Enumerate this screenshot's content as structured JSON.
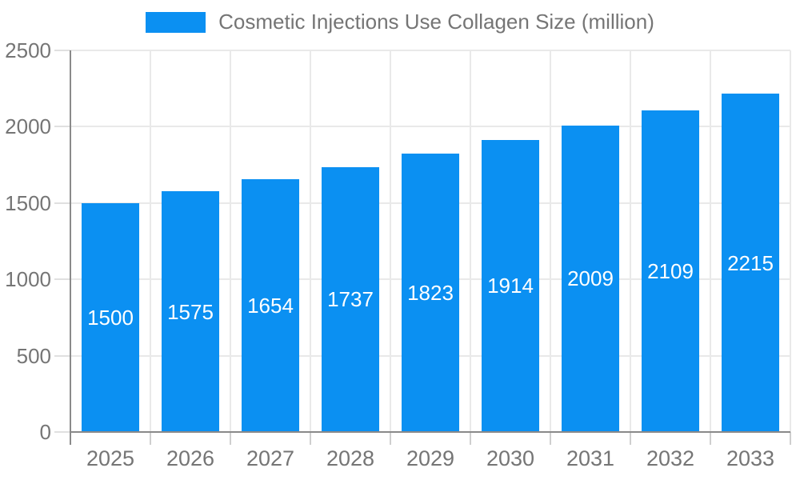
{
  "chart_data": {
    "type": "bar",
    "title": "Cosmetic Injections Use Collagen Size (million)",
    "categories": [
      "2025",
      "2026",
      "2027",
      "2028",
      "2029",
      "2030",
      "2031",
      "2032",
      "2033"
    ],
    "values": [
      1500,
      1575,
      1654,
      1737,
      1823,
      1914,
      2009,
      2109,
      2215
    ],
    "xlabel": "",
    "ylabel": "",
    "ylim": [
      0,
      2500
    ],
    "yticks": [
      0,
      500,
      1000,
      1500,
      2000,
      2500
    ],
    "grid": true,
    "legend_position": "top",
    "bar_color": "#0b90f2",
    "value_label_color": "#ffffff",
    "axis_text_color": "#757575"
  }
}
